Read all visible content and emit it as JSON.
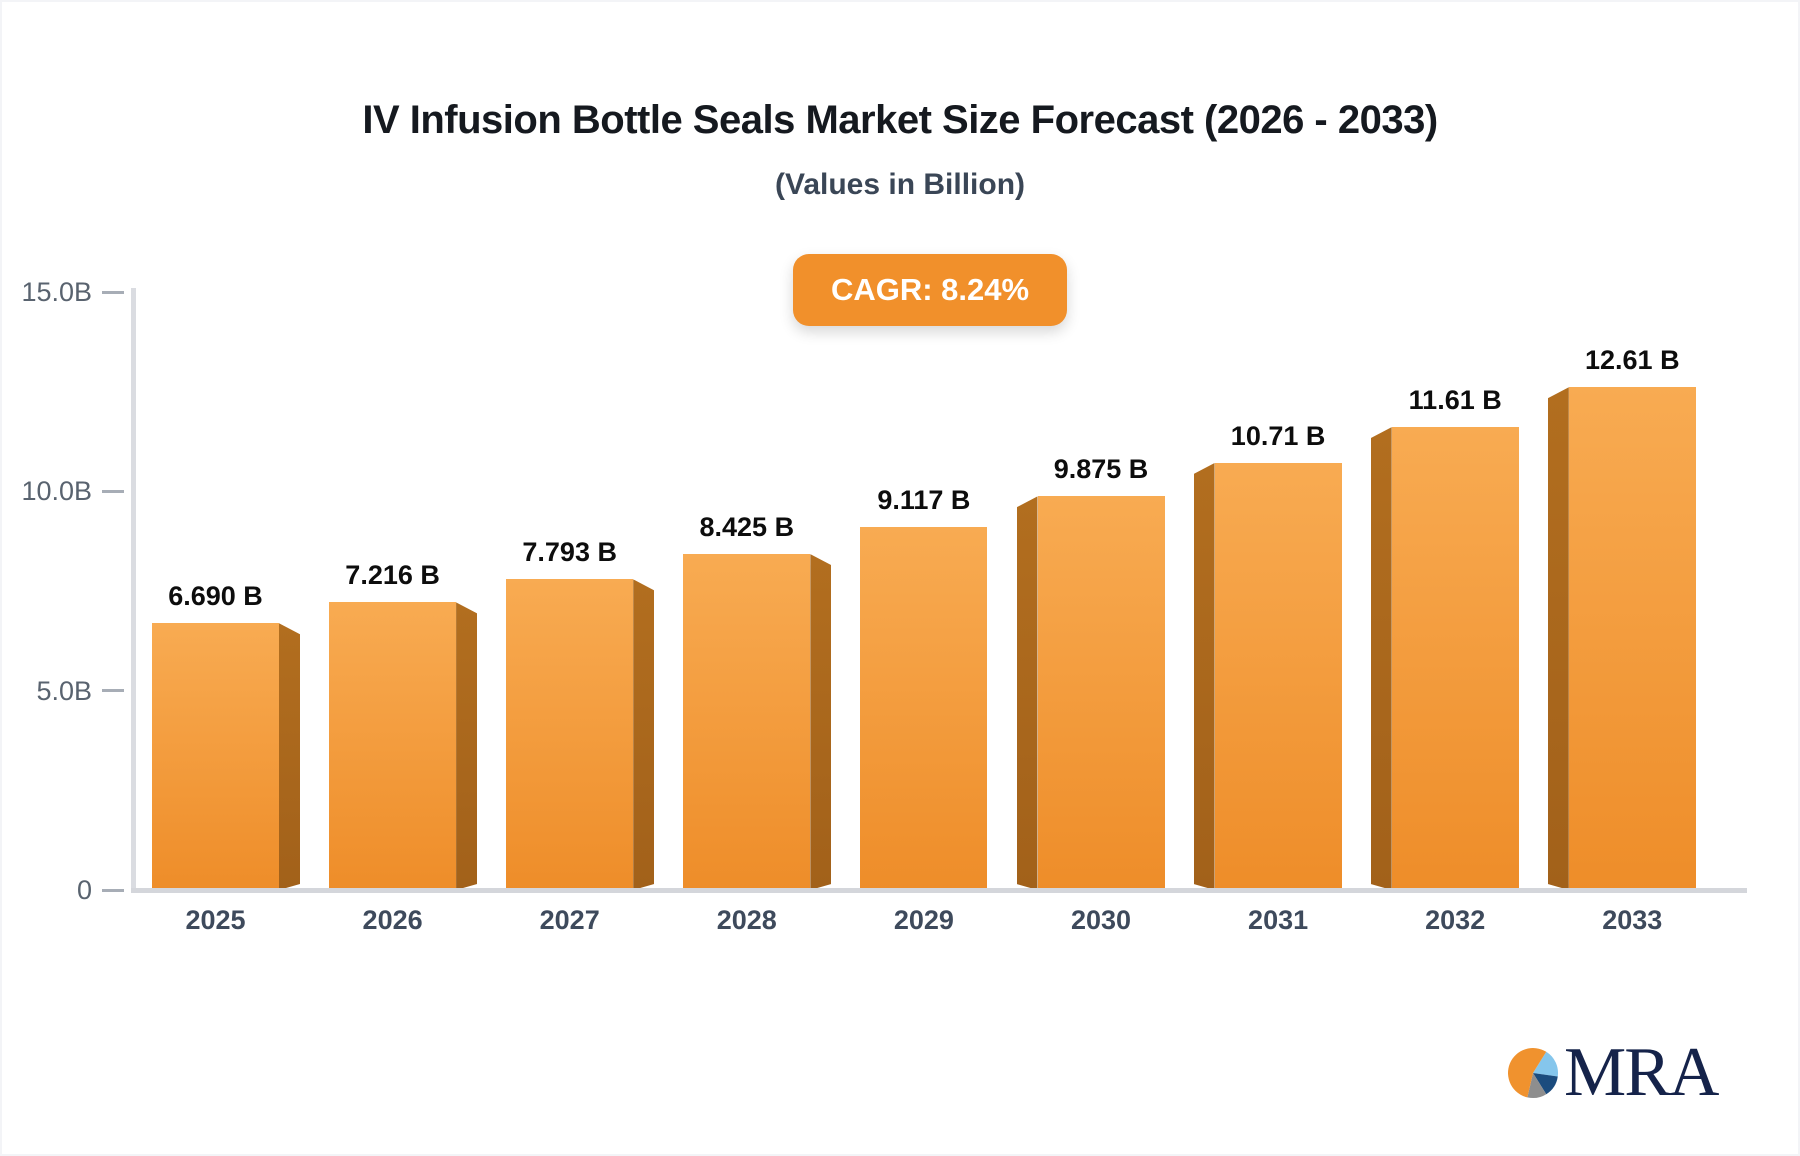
{
  "title": "IV Infusion Bottle Seals Market Size Forecast (2026 - 2033)",
  "subtitle": "(Values in Billion)",
  "badge": {
    "label": "CAGR: 8.24%",
    "bg_color": "#F1902B",
    "text_color": "#FFFFFF"
  },
  "chart_data": {
    "type": "bar",
    "title": "IV Infusion Bottle Seals Market Size Forecast (2026 - 2033)",
    "subtitle": "(Values in Billion)",
    "cagr_label": "CAGR: 8.24%",
    "categories": [
      "2025",
      "2026",
      "2027",
      "2028",
      "2029",
      "2030",
      "2031",
      "2032",
      "2033"
    ],
    "values": [
      6.69,
      7.216,
      7.793,
      8.425,
      9.117,
      9.875,
      10.71,
      11.61,
      12.61
    ],
    "value_labels": [
      "6.690 B",
      "7.216 B",
      "7.793 B",
      "8.425 B",
      "9.117 B",
      "9.875 B",
      "10.71 B",
      "11.61 B",
      "12.61 B"
    ],
    "xlabel": "",
    "ylabel": "",
    "ylim": [
      0,
      15
    ],
    "yticks": [
      {
        "value": 15,
        "label": "15.0B"
      },
      {
        "value": 10,
        "label": "10.0B"
      },
      {
        "value": 5,
        "label": "5.0B"
      },
      {
        "value": 0,
        "label": "0"
      }
    ],
    "grid": false,
    "legend_position": "none",
    "bar_color_top": "#F8AB52",
    "bar_color_bottom": "#EE8D29",
    "bar_side_color": "#A2611A",
    "style": "3d-perspective-bars"
  },
  "logo": {
    "text": "MRA",
    "text_color": "#15234A",
    "pie_segments": [
      {
        "name": "light-blue",
        "color": "#85C6EC",
        "from_deg": 32,
        "to_deg": 98
      },
      {
        "name": "navy",
        "color": "#1B4C7E",
        "from_deg": 98,
        "to_deg": 148
      },
      {
        "name": "gray",
        "color": "#8E8E8E",
        "from_deg": 148,
        "to_deg": 193
      },
      {
        "name": "orange",
        "color": "#F0922E",
        "from_deg": 193,
        "to_deg": 392
      }
    ]
  }
}
